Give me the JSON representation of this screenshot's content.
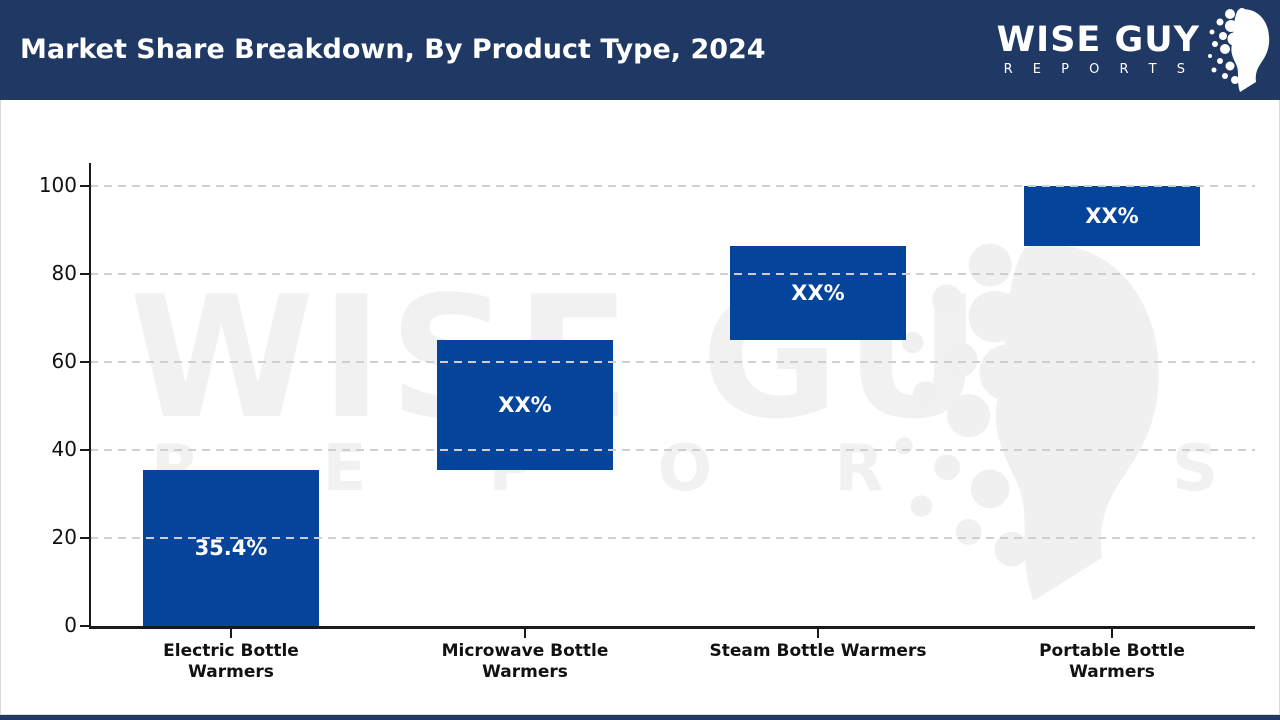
{
  "header": {
    "title": "Market Share Breakdown, By Product Type, 2024",
    "bg_color": "#1F3864",
    "logo": {
      "brand": "WISE GUY",
      "sub": "R E P O R T S"
    }
  },
  "watermark": {
    "line1": "WISE GUY",
    "line2": "R E P O R T S"
  },
  "chart_data": {
    "type": "bar",
    "subtype": "waterfall-stacked-percentage",
    "title": "Market Share Breakdown, By Product Type, 2024",
    "categories": [
      "Electric Bottle Warmers",
      "Microwave Bottle Warmers",
      "Steam Bottle Warmers",
      "Portable Bottle Warmers"
    ],
    "segments": [
      {
        "start": 0,
        "end": 35.4,
        "label": "35.4%"
      },
      {
        "start": 35.4,
        "end": 65,
        "label": "XX%"
      },
      {
        "start": 65,
        "end": 86.4,
        "label": "XX%"
      },
      {
        "start": 86.4,
        "end": 100,
        "label": "XX%"
      }
    ],
    "ylim": [
      0,
      100
    ],
    "yticks": [
      0,
      20,
      40,
      60,
      80,
      100
    ],
    "xlabel": "",
    "ylabel": "",
    "legend": "none",
    "bar_color": "#05449B",
    "grid": {
      "axis": "y",
      "style": "dashed",
      "color": "#cfcfcf",
      "on_top": true
    }
  }
}
